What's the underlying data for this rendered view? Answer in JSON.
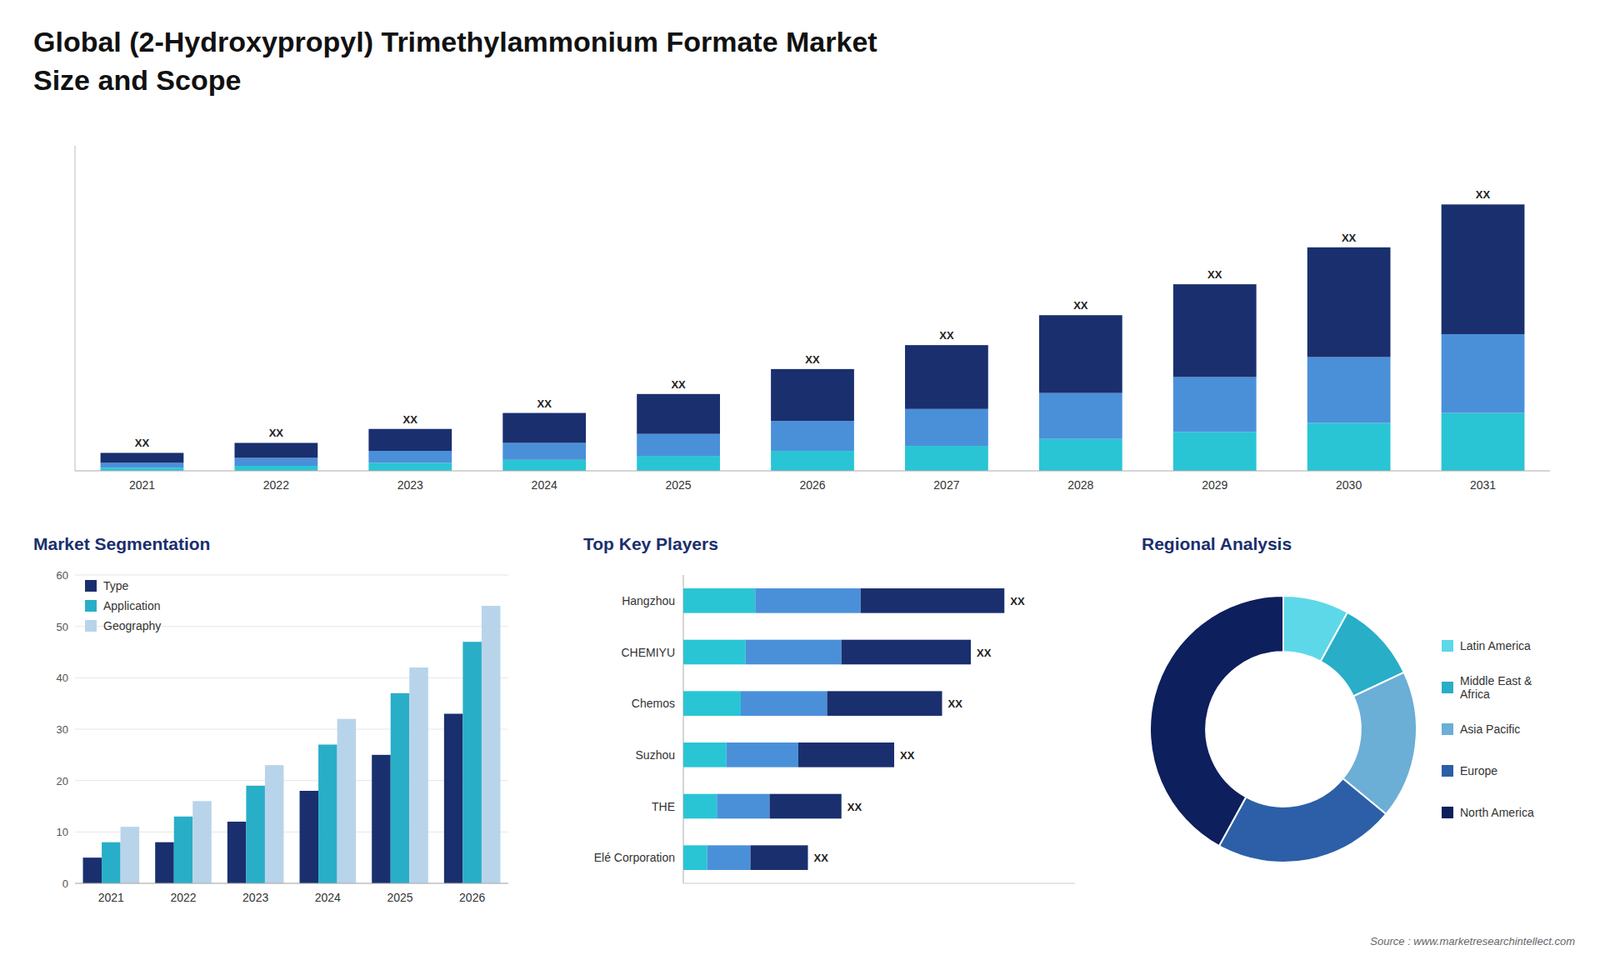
{
  "chart_data": [
    {
      "type": "bar",
      "title": "Global (2-Hydroxypropyl) Trimethylammonium Formate Market",
      "subtitle": "Size and Scope",
      "stacked": true,
      "categories": [
        "2021",
        "2022",
        "2023",
        "2024",
        "2025",
        "2026",
        "2027",
        "2028",
        "2029",
        "2030",
        "2031"
      ],
      "series": [
        {
          "color": "#29c5d4",
          "values": [
            0.3,
            0.5,
            0.8,
            1.1,
            1.5,
            2.0,
            2.5,
            3.2,
            3.9,
            4.8,
            5.8
          ]
        },
        {
          "color": "#4a90d9",
          "values": [
            0.5,
            0.8,
            1.2,
            1.7,
            2.2,
            3.0,
            3.7,
            4.6,
            5.5,
            6.6,
            7.9
          ]
        },
        {
          "color": "#1a2f6e",
          "values": [
            1.0,
            1.5,
            2.2,
            3.0,
            4.0,
            5.2,
            6.4,
            7.8,
            9.3,
            11.0,
            13.0
          ],
          "value_labels": [
            "XX",
            "XX",
            "XX",
            "XX",
            "XX",
            "XX",
            "XX",
            "XX",
            "XX",
            "XX",
            "XX"
          ]
        }
      ],
      "ylim": [
        0,
        32.574
      ],
      "tick_labels": "x"
    },
    {
      "type": "bar",
      "title": "Market Segmentation",
      "categories": [
        "2021",
        "2022",
        "2023",
        "2024",
        "2025",
        "2026"
      ],
      "series": [
        {
          "name": "Type",
          "color": "#1a2f6e",
          "values": [
            5,
            8,
            12,
            18,
            25,
            33
          ]
        },
        {
          "name": "Application",
          "color": "#29aec8",
          "values": [
            8,
            13,
            19,
            27,
            37,
            47
          ]
        },
        {
          "name": "Geography",
          "color": "#b8d4ea",
          "values": [
            11,
            16,
            23,
            32,
            42,
            54
          ]
        }
      ],
      "ylim": [
        0,
        60
      ],
      "yticks": [
        0,
        10,
        20,
        30,
        40,
        50,
        60
      ],
      "grid": true,
      "legend": "upper left"
    },
    {
      "type": "bar",
      "title": "Top Key Players",
      "orientation": "horizontal",
      "stacked": true,
      "categories": [
        "Hangzhou",
        "CHEMIYU",
        "Chemos",
        "Suzhou",
        "THE",
        "Elé Corporation"
      ],
      "series": [
        {
          "color": "#29c5d4",
          "values": [
            1.5,
            1.3,
            1.2,
            0.9,
            0.7,
            0.5
          ]
        },
        {
          "color": "#4a90d9",
          "values": [
            2.2,
            2.0,
            1.8,
            1.5,
            1.1,
            0.9
          ]
        },
        {
          "color": "#1a2f6e",
          "values": [
            3.0,
            2.7,
            2.4,
            2.0,
            1.5,
            1.2
          ],
          "value_labels": [
            "XX",
            "XX",
            "XX",
            "XX",
            "XX",
            "XX"
          ]
        }
      ],
      "xlim": [
        0,
        8.174
      ],
      "tick_labels": "y"
    },
    {
      "type": "pie",
      "title": "Regional Analysis",
      "categories": [
        "Latin America",
        "Middle East &\nAfrica",
        "Asia Pacific",
        "Europe",
        "North America"
      ],
      "values": [
        8,
        10,
        18,
        22,
        42
      ],
      "colors": [
        "#5dd8e8",
        "#29aec8",
        "#6baed6",
        "#2c5fa8",
        "#0d1f5c"
      ],
      "legend": "right",
      "annotations": [
        "Source : www.marketresearchintellect.com"
      ]
    }
  ]
}
